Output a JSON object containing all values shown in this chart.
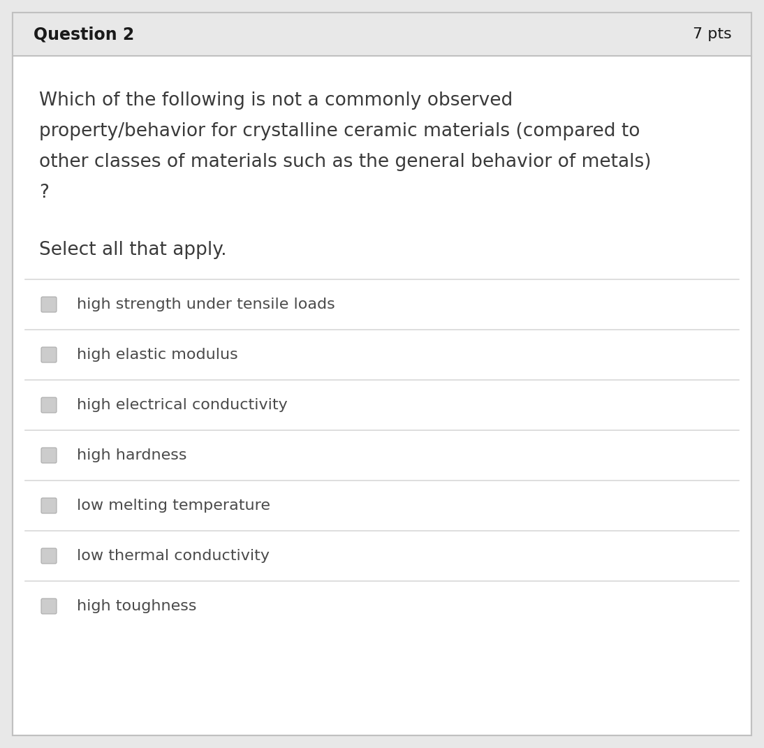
{
  "title_left": "Question 2",
  "title_right": "7 pts",
  "question_lines": [
    "Which of the following is not a commonly observed",
    "property/behavior for crystalline ceramic materials (compared to",
    "other classes of materials such as the general behavior of metals)",
    "?"
  ],
  "subtext": "Select all that apply.",
  "options": [
    "high strength under tensile loads",
    "high elastic modulus",
    "high electrical conductivity",
    "high hardness",
    "low melting temperature",
    "low thermal conductivity",
    "high toughness"
  ],
  "outer_bg": "#e8e8e8",
  "header_bg": "#e8e8e8",
  "body_bg": "#ffffff",
  "border_color": "#c0c0c0",
  "header_text_color": "#1a1a1a",
  "question_text_color": "#3a3a3a",
  "option_text_color": "#4a4a4a",
  "separator_color": "#d8d8d8",
  "checkbox_bg": "#cccccc",
  "checkbox_border": "#aaaaaa",
  "title_fontsize": 17,
  "pts_fontsize": 16,
  "question_fontsize": 19,
  "subtext_fontsize": 19,
  "option_fontsize": 16
}
